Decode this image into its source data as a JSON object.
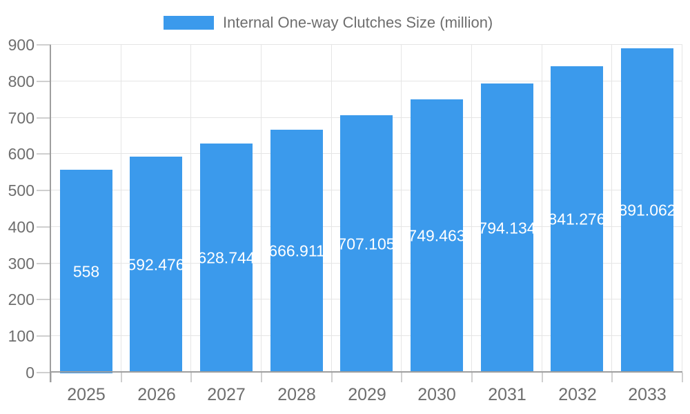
{
  "legend": {
    "label": "Internal One-way Clutches Size (million)"
  },
  "chart_data": {
    "type": "bar",
    "title": "Internal One-way Clutches Size (million)",
    "xlabel": "",
    "ylabel": "",
    "categories": [
      "2025",
      "2026",
      "2027",
      "2028",
      "2029",
      "2030",
      "2031",
      "2032",
      "2033"
    ],
    "values": [
      558,
      592.476,
      628.744,
      666.911,
      707.105,
      749.463,
      794.134,
      841.276,
      891.062
    ],
    "value_labels": [
      "558",
      "592.476",
      "628.744",
      "666.911",
      "707.105",
      "749.463",
      "794.134",
      "841.276",
      "891.062"
    ],
    "ylim": [
      0,
      900
    ],
    "yticks": [
      0,
      100,
      200,
      300,
      400,
      500,
      600,
      700,
      800,
      900
    ],
    "grid": true,
    "legend_position": "top-center",
    "colors": {
      "bar": "#3B9AEC",
      "grid": "#E5E5E5",
      "axis": "#9E9E9E",
      "tick": "#CFCFCF",
      "label_text": "#6E6E6E",
      "value_text": "#FFFFFF"
    }
  }
}
